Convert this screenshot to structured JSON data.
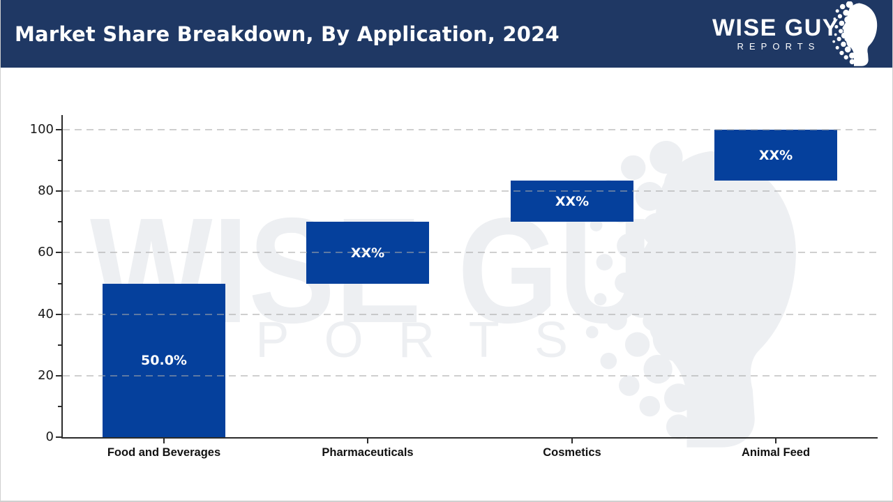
{
  "header": {
    "title": "Market Share Breakdown, By Application, 2024",
    "bg_color": "#1f3864",
    "logo": {
      "wordmark": "WISE GUY",
      "subtitle": "REPORTS"
    }
  },
  "watermark": {
    "line1": "WISE GUY",
    "line2": "REPORTS"
  },
  "chart_data": {
    "type": "bar",
    "subtype": "waterfall",
    "title": "Market Share Breakdown, By Application, 2024",
    "categories": [
      "Food and Beverages",
      "Pharmaceuticals",
      "Cosmetics",
      "Animal Feed"
    ],
    "segments": [
      {
        "category": "Food and Beverages",
        "start": 0,
        "end": 50,
        "label": "50.0%"
      },
      {
        "category": "Pharmaceuticals",
        "start": 50,
        "end": 70,
        "label": "XX%"
      },
      {
        "category": "Cosmetics",
        "start": 70,
        "end": 83.4,
        "label": "XX%"
      },
      {
        "category": "Animal Feed",
        "start": 83.4,
        "end": 100,
        "label": "XX%"
      }
    ],
    "values_visible": [
      "50.0%",
      "XX%",
      "XX%",
      "XX%"
    ],
    "ylim": [
      0,
      100
    ],
    "yticks": [
      0,
      20,
      40,
      60,
      80,
      100
    ],
    "minor_tick_step": 10,
    "grid": {
      "horizontal": true,
      "style": "dashed"
    },
    "bar_color": "#05409c",
    "bar_label_color": "#ffffff",
    "legend": null
  }
}
